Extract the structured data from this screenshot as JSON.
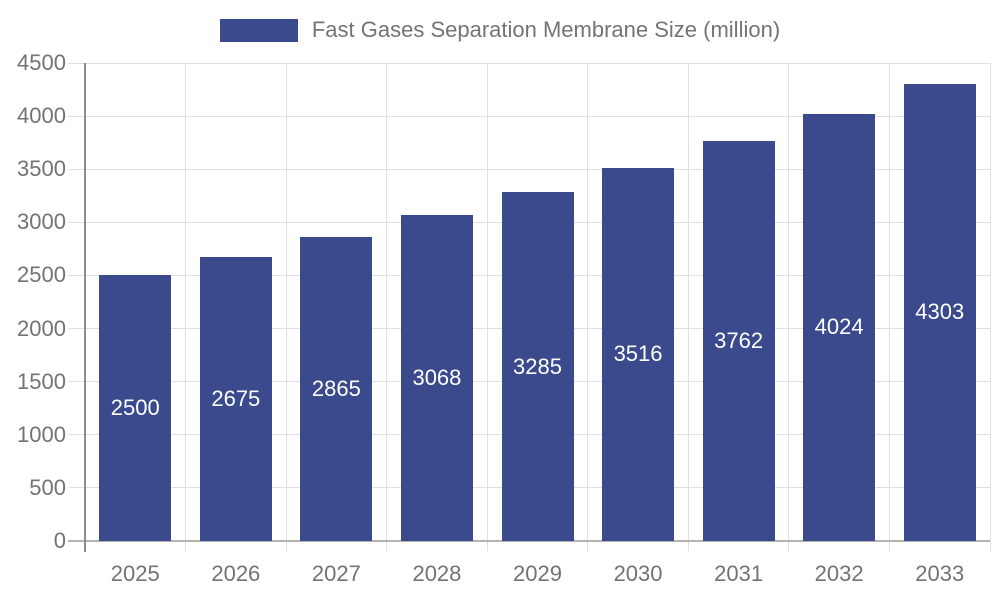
{
  "legend": {
    "label": "Fast Gases Separation Membrane Size (million)"
  },
  "chart_data": {
    "type": "bar",
    "title": "Fast Gases Separation Membrane Size (million)",
    "categories": [
      "2025",
      "2026",
      "2027",
      "2028",
      "2029",
      "2030",
      "2031",
      "2032",
      "2033"
    ],
    "values": [
      2500,
      2675,
      2865,
      3068,
      3285,
      3516,
      3762,
      4024,
      4303
    ],
    "xlabel": "",
    "ylabel": "",
    "ylim": [
      0,
      4500
    ],
    "yticks": [
      0,
      500,
      1000,
      1500,
      2000,
      2500,
      3000,
      3500,
      4000,
      4500
    ],
    "grid": true,
    "legend_position": "top-center",
    "colors": {
      "bar": "#3A4A8C",
      "value_label": "#FFFFFF",
      "axis_text": "#737373",
      "grid_line": "#E0E0E0",
      "y_axis_line": "#8C8C8C",
      "x_axis_line": "#B3B3B3"
    }
  }
}
